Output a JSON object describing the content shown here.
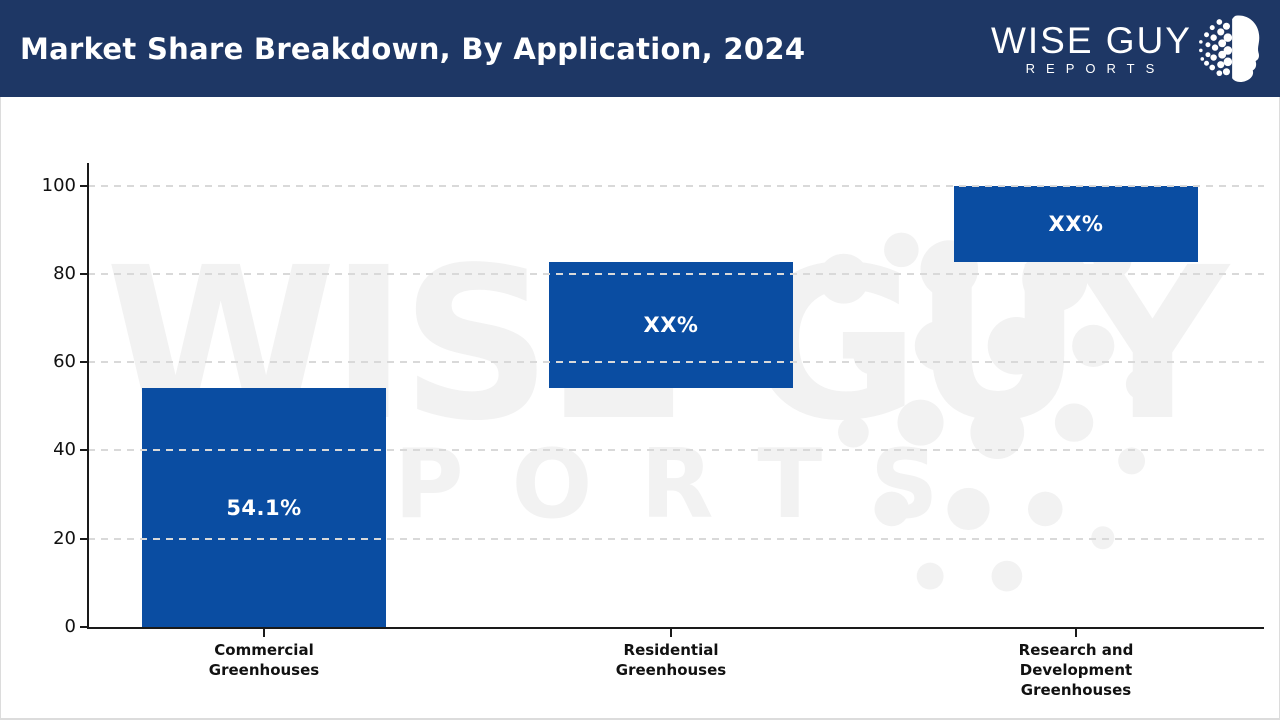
{
  "header": {
    "title": "Market Share Breakdown, By Application, 2024",
    "logo": {
      "wordmark": "WISE GUY",
      "subtext": "REPORTS"
    }
  },
  "watermark": {
    "line1": "WISE GUY",
    "line2": "REPORTS"
  },
  "colors": {
    "header_bg": "#1e3765",
    "bar_fill": "#0a4da2",
    "bar_label": "#ffffff",
    "gridline": "#d9d9d9",
    "axis": "#1a1a1a",
    "watermark": "#f2f2f2"
  },
  "chart_data": {
    "type": "bar",
    "subtype": "floating-waterfall",
    "title": "Market Share Breakdown, By Application, 2024",
    "xlabel": "",
    "ylabel": "",
    "ylim": [
      0,
      105
    ],
    "yticks": [
      0,
      20,
      40,
      60,
      80,
      100
    ],
    "grid": "horizontal-dashed",
    "legend": "none",
    "bars": [
      {
        "category_lines": [
          "Commercial",
          "Greenhouses"
        ],
        "value_label": "54.1%",
        "segment_start": 0,
        "segment_end": 54.1,
        "segment_size": 54.1
      },
      {
        "category_lines": [
          "Residential",
          "Greenhouses"
        ],
        "value_label": "XX%",
        "segment_start": 54.1,
        "segment_end": 82.7,
        "segment_size": 28.6
      },
      {
        "category_lines": [
          "Research and",
          "Development",
          "Greenhouses"
        ],
        "value_label": "XX%",
        "segment_start": 82.7,
        "segment_end": 100,
        "segment_size": 17.3
      }
    ]
  }
}
